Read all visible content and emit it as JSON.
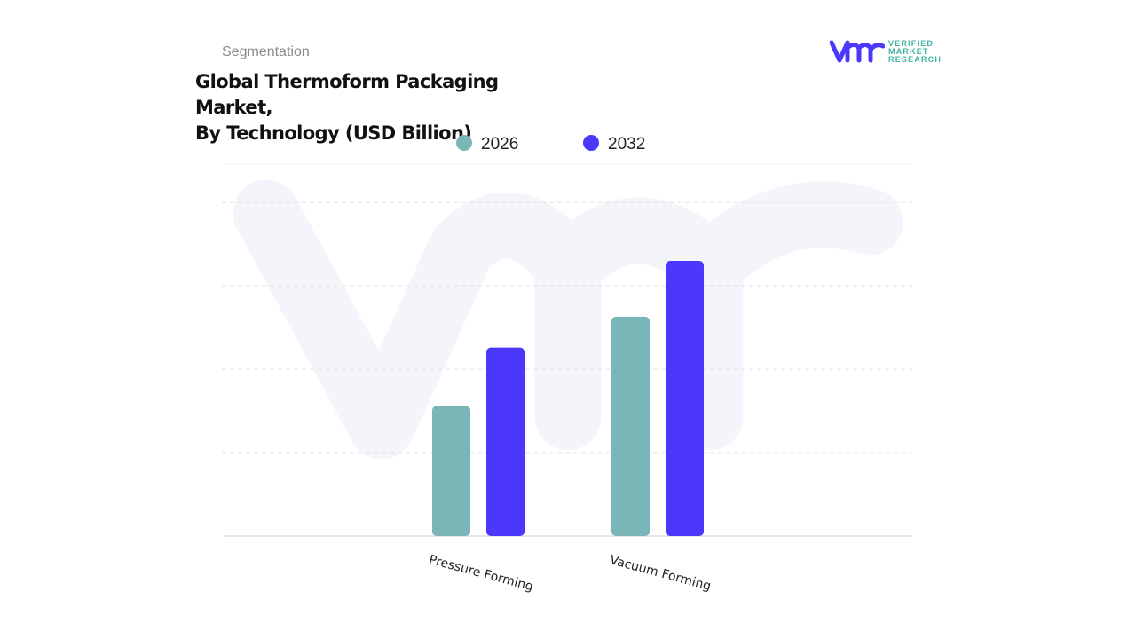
{
  "header": {
    "section_label": "Segmentation",
    "title_line1": "Global Thermoform Packaging Market,",
    "title_line2": "By Technology (USD Billion)"
  },
  "logo": {
    "line1": "VERIFIED",
    "line2": "MARKET",
    "line3": "RESEARCH",
    "mark": "vmr"
  },
  "colors": {
    "series_2026": "#7ab5b8",
    "series_2032": "#4b38fb",
    "brand_teal": "#3fb3a6",
    "watermark": "#f3f5fb"
  },
  "chart_data": {
    "type": "bar",
    "title": "Global Thermoform Packaging Market, By Technology (USD Billion)",
    "categories": [
      "Pressure Forming",
      "Vacuum Forming"
    ],
    "series": [
      {
        "name": "2026",
        "values": [
          1.56,
          2.63
        ]
      },
      {
        "name": "2032",
        "values": [
          2.26,
          3.3
        ]
      }
    ],
    "xlabel": "",
    "ylabel": "",
    "ylim": [
      0,
      4.46
    ],
    "y_tick_labels_shown": false,
    "grid": true,
    "legend_placement": "top-center"
  }
}
